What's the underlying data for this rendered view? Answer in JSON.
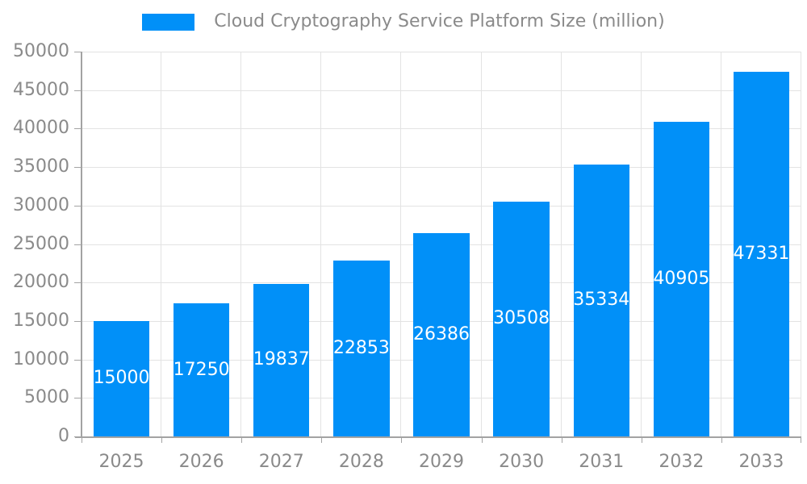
{
  "chart_data": {
    "type": "bar",
    "title": "Cloud Cryptography Service Platform Size (million)",
    "categories": [
      "2025",
      "2026",
      "2027",
      "2028",
      "2029",
      "2030",
      "2031",
      "2032",
      "2033"
    ],
    "values": [
      15000,
      17250,
      19837,
      22853,
      26386,
      30508,
      35334,
      40905,
      47331
    ],
    "xlabel": "",
    "ylabel": "",
    "ylim": [
      0,
      50000
    ],
    "ytick_step": 5000,
    "ytick_labels": [
      "0",
      "5000",
      "10000",
      "15000",
      "20000",
      "25000",
      "30000",
      "35000",
      "40000",
      "45000",
      "50000"
    ],
    "grid": true,
    "legend_position": "top",
    "colors": {
      "bar": "#0190f8",
      "value_label": "#ffffff",
      "axis_text": "#8a8a8a",
      "legend_text": "#8a8a8a",
      "grid_line": "#e3e3e3",
      "axis_line": "#a3a3a3",
      "background": "#ffffff"
    }
  }
}
